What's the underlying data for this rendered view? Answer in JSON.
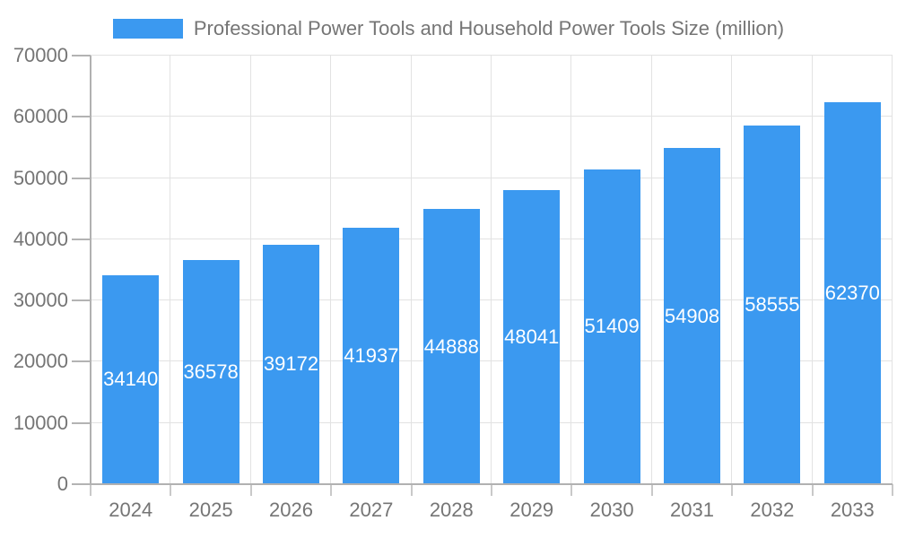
{
  "legend": {
    "position": "top",
    "swatch_icon": "legend-swatch"
  },
  "chart_data": {
    "type": "bar",
    "title": "Professional Power Tools and Household Power Tools Size (million)",
    "categories": [
      "2024",
      "2025",
      "2026",
      "2027",
      "2028",
      "2029",
      "2030",
      "2031",
      "2032",
      "2033"
    ],
    "values": [
      34140,
      36578,
      39172,
      41937,
      44888,
      48041,
      51409,
      54908,
      58555,
      62370
    ],
    "xlabel": "",
    "ylabel": "",
    "ylim": [
      0,
      70000
    ],
    "ytick_step": 10000,
    "yticks": [
      "0",
      "10000",
      "20000",
      "30000",
      "40000",
      "50000",
      "60000",
      "70000"
    ],
    "grid": true,
    "legend_position": "top",
    "bar_color": "#3b99f0",
    "value_label_color": "#ffffff",
    "axis_text_color": "#757575",
    "axis_line_color": "#b1b1b1",
    "grid_color": "#e2e2e2"
  }
}
